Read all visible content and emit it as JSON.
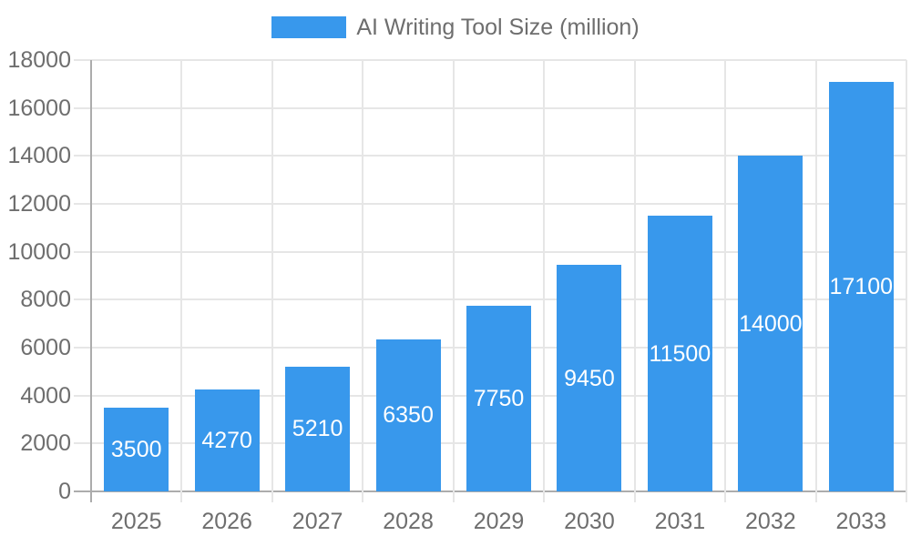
{
  "chart_data": {
    "type": "bar",
    "title": "AI Writing Tool Size (million)",
    "categories": [
      "2025",
      "2026",
      "2027",
      "2028",
      "2029",
      "2030",
      "2031",
      "2032",
      "2033"
    ],
    "values": [
      3500,
      4270,
      5210,
      6350,
      7750,
      9450,
      11500,
      14000,
      17100
    ],
    "series_name": "AI Writing Tool Size (million)",
    "xlabel": "",
    "ylabel": "",
    "ylim": [
      0,
      18000
    ],
    "yticks": [
      0,
      2000,
      4000,
      6000,
      8000,
      10000,
      12000,
      14000,
      16000,
      18000
    ],
    "grid": true,
    "legend_position": "top-center",
    "bar_value_labels": [
      "3500",
      "4270",
      "5210",
      "6350",
      "7750",
      "9450",
      "11500",
      "14000",
      "17100"
    ],
    "colors": {
      "bar": "#3898EC",
      "axis_text": "#6E6E6E",
      "gridline": "#E6E6E6",
      "axis_line": "#ACACAC",
      "bar_label_text": "#FFFFFF",
      "background": "#FFFFFF"
    }
  }
}
